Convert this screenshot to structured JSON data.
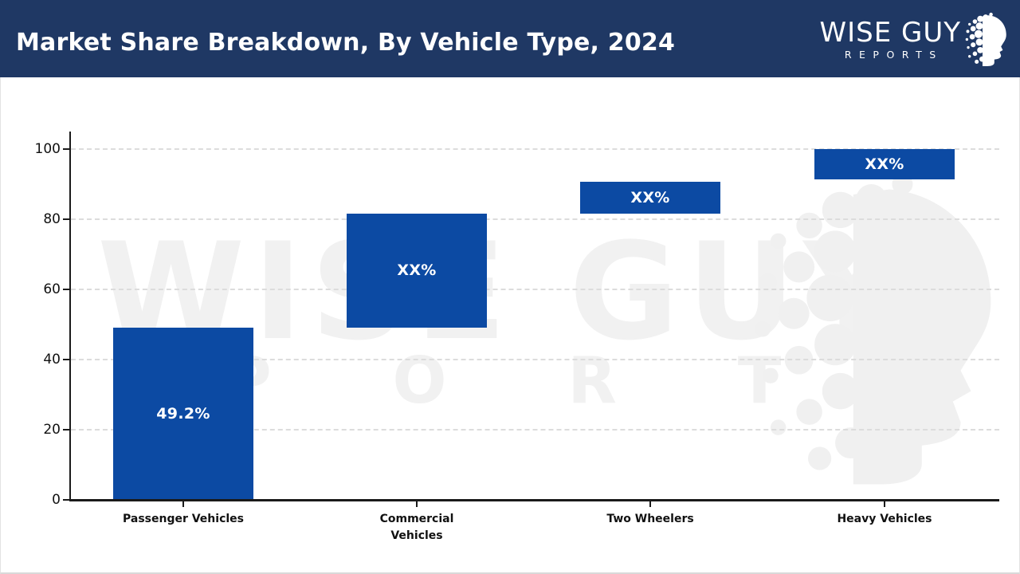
{
  "header": {
    "title": "Market Share Breakdown, By Vehicle Type, 2024",
    "logo": {
      "name": "WISE GUY",
      "sub": "REPORTS"
    }
  },
  "colors": {
    "header_bg": "#1f3864",
    "bar": "#0c4aa3",
    "grid": "#dcdcdc",
    "axis": "#1a1a1a",
    "watermark": "#f1f1f1",
    "bar_label": "#ffffff"
  },
  "chart_data": {
    "type": "bar",
    "variant": "waterfall",
    "title": "Market Share Breakdown, By Vehicle Type, 2024",
    "categories": [
      "Passenger Vehicles",
      "Commercial Vehicles",
      "Two Wheelers",
      "Heavy Vehicles"
    ],
    "category_label_lines": [
      [
        "Passenger Vehicles"
      ],
      [
        "Commercial",
        "Vehicles"
      ],
      [
        "Two Wheelers"
      ],
      [
        "Heavy Vehicles"
      ]
    ],
    "segments": [
      {
        "category": "Passenger Vehicles",
        "start": 0,
        "end": 49.2,
        "label": "49.2%"
      },
      {
        "category": "Commercial Vehicles",
        "start": 49.2,
        "end": 81.5,
        "label": "XX%"
      },
      {
        "category": "Two Wheelers",
        "start": 81.5,
        "end": 90.7,
        "label": "XX%"
      },
      {
        "category": "Heavy Vehicles",
        "start": 91.4,
        "end": 100,
        "label": "XX%"
      }
    ],
    "y_ticks": [
      0,
      20,
      40,
      60,
      80,
      100
    ],
    "ylim": [
      0,
      105
    ],
    "xlabel": "",
    "ylabel": "",
    "grid": "horizontal-dashed",
    "legend": "none",
    "watermark": {
      "line1": "WISE GUY",
      "line2": "P O R T S"
    }
  }
}
